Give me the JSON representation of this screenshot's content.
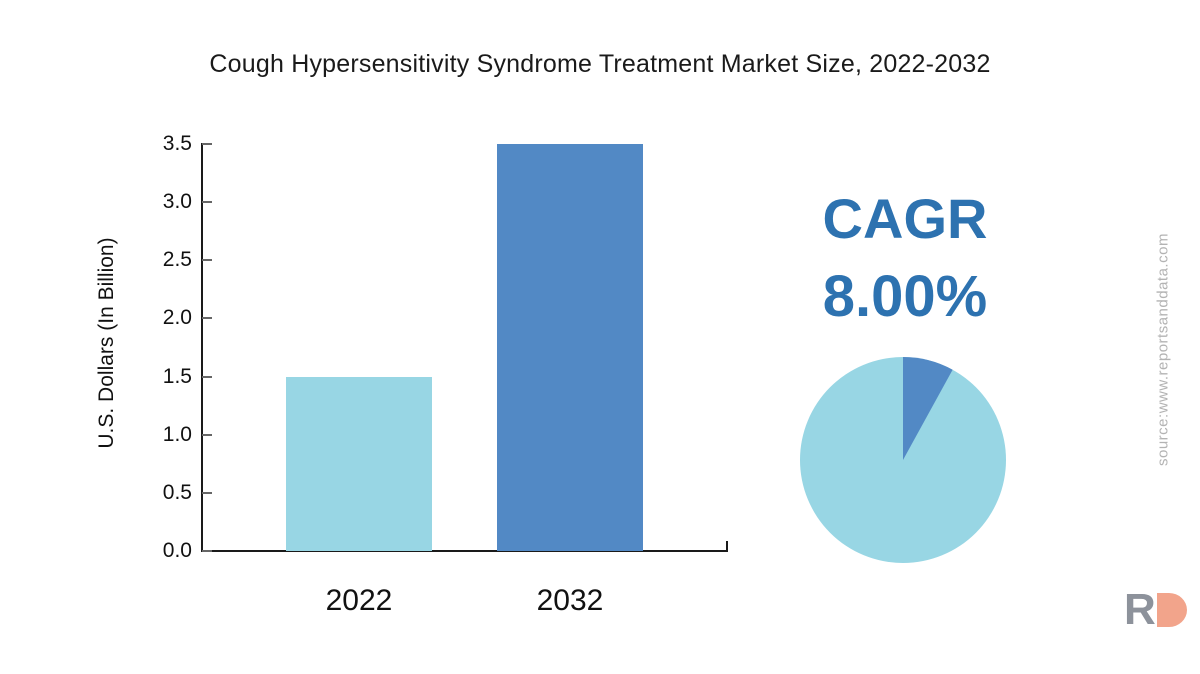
{
  "title": "Cough Hypersensitivity Syndrome Treatment Market Size, 2022-2032",
  "source_note": "source:www.reportsanddata.com",
  "cagr": {
    "label": "CAGR",
    "value": "8.00%",
    "percent": 8,
    "color": "#2d72b0"
  },
  "logo": {
    "letter_r": "R",
    "r_color": "#8d929b",
    "d_color": "#f2a48b"
  },
  "colors": {
    "bar_light": "#98d6e4",
    "bar_dark": "#5289c5",
    "axis": "#1a1a1a",
    "tick": "#666666",
    "text": "#111111",
    "source_text": "#b3b3b3"
  },
  "chart_data": [
    {
      "type": "bar",
      "title": "Cough Hypersensitivity Syndrome Treatment Market Size, 2022-2032",
      "categories": [
        "2022",
        "2032"
      ],
      "values": [
        1.5,
        3.5
      ],
      "bar_colors": [
        "#98d6e4",
        "#5289c5"
      ],
      "xlabel": "",
      "ylabel": "U.S. Dollars (In Billion)",
      "ylim": [
        0,
        3.5
      ],
      "ytick_step": 0.5,
      "yticks": [
        "0.0",
        "0.5",
        "1.0",
        "1.5",
        "2.0",
        "2.5",
        "3.0",
        "3.5"
      ],
      "grid": false,
      "legend": "none"
    },
    {
      "type": "pie",
      "title": "CAGR 8.00%",
      "slices": [
        {
          "name": "cagr-share",
          "value": 8,
          "color": "#5289c5"
        },
        {
          "name": "remainder",
          "value": 92,
          "color": "#98d6e4"
        }
      ],
      "start_angle_deg": 0,
      "direction": "clockwise-from-top"
    }
  ]
}
